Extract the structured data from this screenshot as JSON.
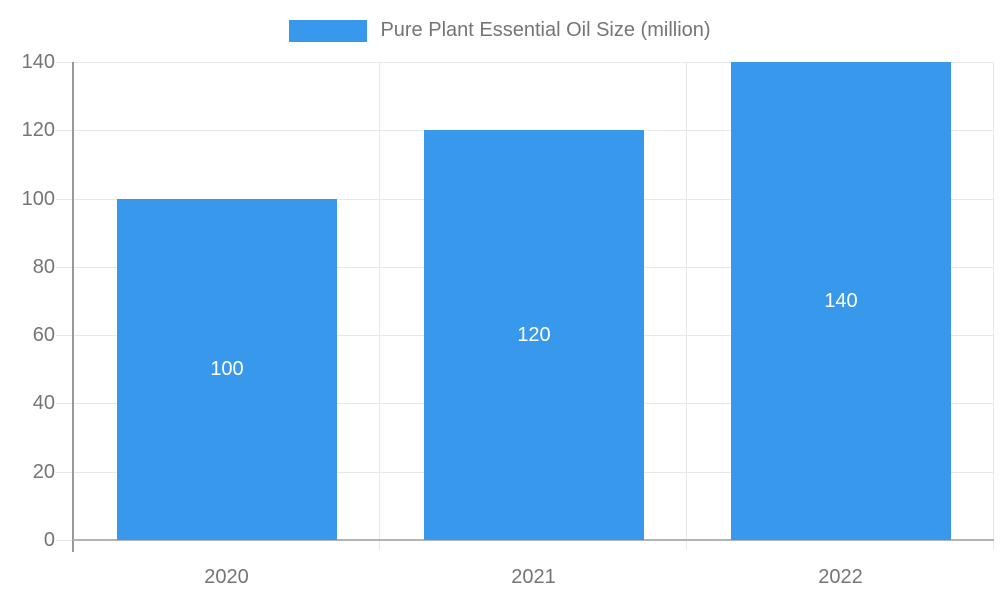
{
  "chart_data": {
    "type": "bar",
    "legend": {
      "label": "Pure Plant Essential Oil Size (million)",
      "position": "top-center"
    },
    "categories": [
      "2020",
      "2021",
      "2022"
    ],
    "series": [
      {
        "name": "Pure Plant Essential Oil Size (million)",
        "values": [
          100,
          120,
          140
        ]
      }
    ],
    "value_labels": [
      "100",
      "120",
      "140"
    ],
    "ylim": [
      0,
      140
    ],
    "ytick_step": 20,
    "ytick_labels": [
      "0",
      "20",
      "40",
      "60",
      "80",
      "100",
      "120",
      "140"
    ],
    "grid": true,
    "legend_position": "top",
    "colors": {
      "bar": "#3898EC",
      "value_label": "#FFFFFF",
      "axis_text": "#757575",
      "gridline": "#E8E8E8",
      "y_axis_line": "#999999",
      "baseline": "#B3B3B3"
    }
  }
}
